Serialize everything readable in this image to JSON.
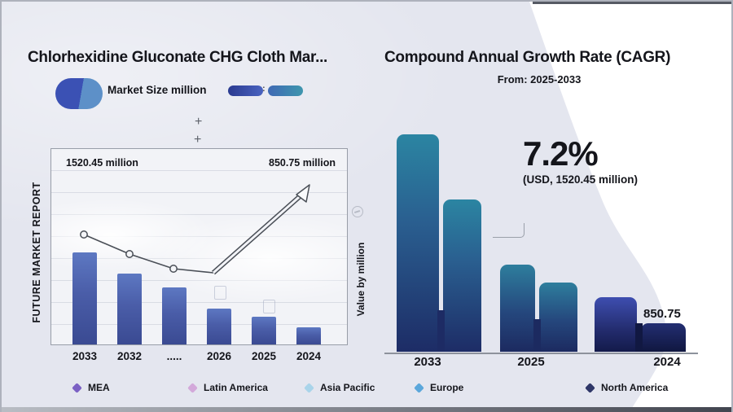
{
  "page": {
    "left": {
      "title": "Chlorhexidine Gluconate CHG Cloth Mar...",
      "subtitle_label": "Market Size million",
      "watermark_left": "FUTURE MARKET REPORT",
      "axis_right_label": "Value by million",
      "plus_glyph": "+",
      "colon": ":"
    },
    "right": {
      "title": "Compound Annual Growth Rate (CAGR)",
      "subtitle": "From: 2025-2033",
      "cagr_value": "7.2%",
      "cagr_note": "(USD, 1520.45 million)"
    },
    "legend": [
      {
        "label": "MEA",
        "color": "#7b61c4"
      },
      {
        "label": "Latin America",
        "color": "#d3a9da"
      },
      {
        "label": "Asia Pacific",
        "color": "#a9d4ea"
      },
      {
        "label": "Europe",
        "color": "#5ba7db"
      },
      {
        "label": "North America",
        "color": "#2f3768"
      }
    ],
    "colors": {
      "background": "#e4e6ef",
      "left_bar_top": "#5d78c2",
      "left_bar_bottom": "#3a4a92",
      "right_bar_teal_top": "#2b85a2",
      "right_bar_navy_bottom": "#1d2c66",
      "right_bar_2024_dark": "#101740"
    }
  },
  "chart_data": [
    {
      "type": "bar",
      "title": "Chlorhexidine Gluconate CHG Cloth Mar...",
      "ylabel": "Value by million",
      "grid": true,
      "categories": [
        "2033",
        "2032",
        ".....",
        "2026",
        "2025",
        "2024"
      ],
      "values_relative": [
        100,
        77,
        62,
        39,
        30,
        19
      ],
      "annotations": {
        "start": "1520.45 million",
        "end": "850.75 million"
      },
      "trend_points": [
        [
          41,
          106
        ],
        [
          97,
          130
        ],
        [
          151,
          148
        ],
        [
          200,
          153
        ]
      ],
      "arrow_tip": [
        318,
        45
      ],
      "note": "decorative infographic bars; no numeric axis shown"
    },
    {
      "type": "bar",
      "title": "Compound Annual Growth Rate (CAGR)",
      "subtitle": "From: 2025-2033",
      "cagr": "7.2%",
      "cagr_note": "(USD, 1520.45 million)",
      "categories": [
        "2033",
        "2025",
        "2024"
      ],
      "series": [
        {
          "name": "pair-left",
          "values_relative": [
            100,
            40,
            25
          ]
        },
        {
          "name": "pair-right",
          "values_relative": [
            70,
            32,
            13
          ]
        }
      ],
      "bridge_relative": [
        19,
        15,
        13
      ],
      "annotation": {
        "text": "850.75",
        "category": "2024"
      },
      "legend_entries": [
        "MEA",
        "Latin America",
        "Asia Pacific",
        "Europe",
        "North America"
      ]
    }
  ]
}
